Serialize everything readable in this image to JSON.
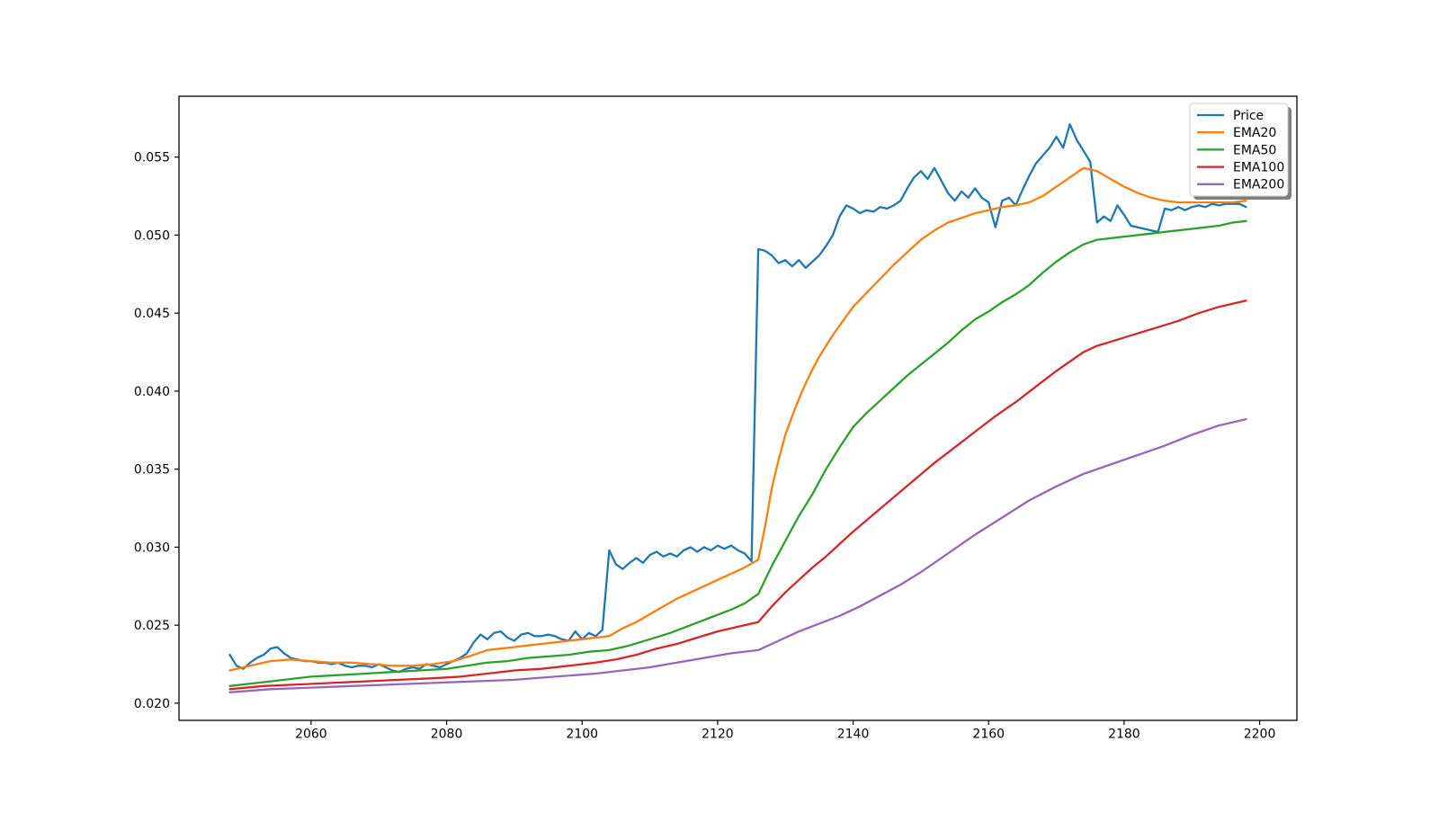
{
  "chart_data": {
    "type": "line",
    "title": "",
    "xlabel": "",
    "ylabel": "",
    "grid": false,
    "xlim": [
      2040.5,
      2205.5
    ],
    "ylim": [
      0.0189,
      0.0589
    ],
    "xticks": [
      2060,
      2080,
      2100,
      2120,
      2140,
      2160,
      2180,
      2200
    ],
    "xtick_labels": [
      "2060",
      "2080",
      "2100",
      "2120",
      "2140",
      "2160",
      "2180",
      "2200"
    ],
    "yticks": [
      0.02,
      0.025,
      0.03,
      0.035,
      0.04,
      0.045,
      0.05,
      0.055
    ],
    "ytick_labels": [
      "0.020",
      "0.025",
      "0.030",
      "0.035",
      "0.040",
      "0.045",
      "0.050",
      "0.055"
    ],
    "legend": {
      "position": "upper-right",
      "labels": [
        "Price",
        "EMA20",
        "EMA50",
        "EMA100",
        "EMA200"
      ]
    },
    "series": [
      {
        "name": "Price",
        "color": "#1f77b4",
        "x": [
          2048,
          2049,
          2050,
          2051,
          2052,
          2053,
          2054,
          2055,
          2056,
          2057,
          2058,
          2059,
          2060,
          2061,
          2062,
          2063,
          2064,
          2065,
          2066,
          2067,
          2068,
          2069,
          2070,
          2071,
          2072,
          2073,
          2074,
          2075,
          2076,
          2077,
          2078,
          2079,
          2080,
          2081,
          2082,
          2083,
          2084,
          2085,
          2086,
          2087,
          2088,
          2089,
          2090,
          2091,
          2092,
          2093,
          2094,
          2095,
          2096,
          2097,
          2098,
          2099,
          2100,
          2101,
          2102,
          2103,
          2104,
          2105,
          2106,
          2107,
          2108,
          2109,
          2110,
          2111,
          2112,
          2113,
          2114,
          2115,
          2116,
          2117,
          2118,
          2119,
          2120,
          2121,
          2122,
          2123,
          2124,
          2125,
          2126,
          2127,
          2128,
          2129,
          2130,
          2131,
          2132,
          2133,
          2134,
          2135,
          2136,
          2137,
          2138,
          2139,
          2140,
          2141,
          2142,
          2143,
          2144,
          2145,
          2146,
          2147,
          2148,
          2149,
          2150,
          2151,
          2152,
          2153,
          2154,
          2155,
          2156,
          2157,
          2158,
          2159,
          2160,
          2161,
          2162,
          2163,
          2164,
          2165,
          2166,
          2167,
          2168,
          2169,
          2170,
          2171,
          2172,
          2173,
          2174,
          2175,
          2176,
          2177,
          2178,
          2179,
          2180,
          2181,
          2182,
          2183,
          2184,
          2185,
          2186,
          2187,
          2188,
          2189,
          2190,
          2191,
          2192,
          2193,
          2194,
          2195,
          2196,
          2197,
          2198
        ],
        "y": [
          0.0231,
          0.0224,
          0.0222,
          0.0226,
          0.0229,
          0.0231,
          0.0235,
          0.0236,
          0.0232,
          0.0229,
          0.0228,
          0.0227,
          0.0227,
          0.0226,
          0.0226,
          0.0225,
          0.0226,
          0.0224,
          0.0223,
          0.0224,
          0.0224,
          0.0223,
          0.0225,
          0.0223,
          0.0221,
          0.022,
          0.0222,
          0.0223,
          0.0222,
          0.0225,
          0.0224,
          0.0223,
          0.0225,
          0.0227,
          0.0229,
          0.0232,
          0.0239,
          0.0244,
          0.0241,
          0.0245,
          0.0246,
          0.0242,
          0.024,
          0.0244,
          0.0245,
          0.0243,
          0.0243,
          0.0244,
          0.0243,
          0.0241,
          0.024,
          0.0246,
          0.0241,
          0.0245,
          0.0243,
          0.0247,
          0.0298,
          0.0289,
          0.0286,
          0.029,
          0.0293,
          0.029,
          0.0295,
          0.0297,
          0.0294,
          0.0296,
          0.0294,
          0.0298,
          0.03,
          0.0297,
          0.03,
          0.0298,
          0.0301,
          0.0299,
          0.0301,
          0.0298,
          0.0296,
          0.0291,
          0.0491,
          0.049,
          0.0487,
          0.0482,
          0.0484,
          0.048,
          0.0484,
          0.0479,
          0.0483,
          0.0487,
          0.0493,
          0.05,
          0.0512,
          0.0519,
          0.0517,
          0.0514,
          0.0516,
          0.0515,
          0.0518,
          0.0517,
          0.0519,
          0.0522,
          0.053,
          0.0537,
          0.0541,
          0.0536,
          0.0543,
          0.0535,
          0.0527,
          0.0522,
          0.0528,
          0.0524,
          0.053,
          0.0524,
          0.0521,
          0.0505,
          0.0522,
          0.0524,
          0.0519,
          0.0529,
          0.0538,
          0.0546,
          0.0551,
          0.0556,
          0.0563,
          0.0556,
          0.0571,
          0.0561,
          0.0554,
          0.0547,
          0.0508,
          0.0512,
          0.0509,
          0.0519,
          0.0513,
          0.0506,
          0.0505,
          0.0504,
          0.0503,
          0.0502,
          0.0517,
          0.0516,
          0.0518,
          0.0516,
          0.0518,
          0.0519,
          0.0518,
          0.052,
          0.0519,
          0.052,
          0.052,
          0.052,
          0.0518
        ]
      },
      {
        "name": "EMA20",
        "color": "#ff7f0e",
        "x": [
          2048,
          2051,
          2054,
          2057,
          2060,
          2063,
          2066,
          2069,
          2072,
          2075,
          2078,
          2081,
          2084,
          2086,
          2088,
          2090,
          2092,
          2094,
          2096,
          2098,
          2100,
          2102,
          2104,
          2106,
          2108,
          2110,
          2112,
          2114,
          2116,
          2118,
          2120,
          2122,
          2124,
          2126,
          2127,
          2128,
          2129,
          2130,
          2131,
          2132,
          2133,
          2134,
          2135,
          2136,
          2137,
          2138,
          2139,
          2140,
          2142,
          2144,
          2146,
          2148,
          2150,
          2152,
          2154,
          2156,
          2158,
          2160,
          2162,
          2164,
          2166,
          2168,
          2170,
          2172,
          2174,
          2176,
          2178,
          2180,
          2182,
          2184,
          2186,
          2188,
          2190,
          2192,
          2194,
          2196,
          2198
        ],
        "y": [
          0.0221,
          0.0224,
          0.0227,
          0.0228,
          0.0227,
          0.0226,
          0.0226,
          0.0225,
          0.0224,
          0.0224,
          0.0225,
          0.0227,
          0.0231,
          0.0234,
          0.0235,
          0.0236,
          0.0237,
          0.0238,
          0.0239,
          0.024,
          0.0241,
          0.0242,
          0.0243,
          0.0248,
          0.0252,
          0.0257,
          0.0262,
          0.0267,
          0.0271,
          0.0275,
          0.0279,
          0.0283,
          0.0287,
          0.0292,
          0.0313,
          0.0338,
          0.0356,
          0.0372,
          0.0384,
          0.0395,
          0.0405,
          0.0414,
          0.0422,
          0.0429,
          0.0436,
          0.0442,
          0.0448,
          0.0454,
          0.0463,
          0.0472,
          0.0481,
          0.0489,
          0.0497,
          0.0503,
          0.0508,
          0.0511,
          0.0514,
          0.0516,
          0.0518,
          0.0519,
          0.0521,
          0.0525,
          0.0531,
          0.0537,
          0.0543,
          0.0541,
          0.0536,
          0.0531,
          0.0527,
          0.0524,
          0.0522,
          0.0521,
          0.0521,
          0.0521,
          0.0521,
          0.0521,
          0.0522
        ]
      },
      {
        "name": "EMA50",
        "color": "#2ca02c",
        "x": [
          2048,
          2052,
          2056,
          2060,
          2064,
          2068,
          2072,
          2076,
          2080,
          2083,
          2086,
          2089,
          2092,
          2095,
          2098,
          2101,
          2104,
          2107,
          2110,
          2113,
          2116,
          2119,
          2122,
          2124,
          2126,
          2128,
          2130,
          2132,
          2134,
          2136,
          2138,
          2140,
          2142,
          2144,
          2146,
          2148,
          2150,
          2152,
          2154,
          2156,
          2158,
          2160,
          2162,
          2164,
          2166,
          2168,
          2170,
          2172,
          2174,
          2176,
          2178,
          2180,
          2182,
          2184,
          2186,
          2188,
          2190,
          2192,
          2194,
          2196,
          2198
        ],
        "y": [
          0.0211,
          0.0213,
          0.0215,
          0.0217,
          0.0218,
          0.0219,
          0.022,
          0.0221,
          0.0222,
          0.0224,
          0.0226,
          0.0227,
          0.0229,
          0.023,
          0.0231,
          0.0233,
          0.0234,
          0.0237,
          0.0241,
          0.0245,
          0.025,
          0.0255,
          0.026,
          0.0264,
          0.027,
          0.0288,
          0.0304,
          0.032,
          0.0334,
          0.035,
          0.0364,
          0.0377,
          0.0386,
          0.0394,
          0.0402,
          0.041,
          0.0417,
          0.0424,
          0.0431,
          0.0439,
          0.0446,
          0.0451,
          0.0457,
          0.0462,
          0.0468,
          0.0476,
          0.0483,
          0.0489,
          0.0494,
          0.0497,
          0.0498,
          0.0499,
          0.05,
          0.0501,
          0.0502,
          0.0503,
          0.0504,
          0.0505,
          0.0506,
          0.0508,
          0.0509
        ]
      },
      {
        "name": "EMA100",
        "color": "#d62728",
        "x": [
          2048,
          2053,
          2058,
          2063,
          2068,
          2073,
          2078,
          2082,
          2086,
          2090,
          2094,
          2098,
          2102,
          2105,
          2108,
          2111,
          2114,
          2117,
          2120,
          2123,
          2126,
          2128,
          2130,
          2132,
          2134,
          2136,
          2138,
          2140,
          2143,
          2146,
          2149,
          2152,
          2155,
          2158,
          2161,
          2164,
          2167,
          2170,
          2172,
          2174,
          2176,
          2179,
          2182,
          2185,
          2188,
          2191,
          2194,
          2198
        ],
        "y": [
          0.0209,
          0.0211,
          0.0212,
          0.0213,
          0.0214,
          0.0215,
          0.0216,
          0.0217,
          0.0219,
          0.0221,
          0.0222,
          0.0224,
          0.0226,
          0.0228,
          0.0231,
          0.0235,
          0.0238,
          0.0242,
          0.0246,
          0.0249,
          0.0252,
          0.0262,
          0.0271,
          0.0279,
          0.0287,
          0.0294,
          0.0302,
          0.031,
          0.0321,
          0.0332,
          0.0343,
          0.0354,
          0.0364,
          0.0374,
          0.0384,
          0.0393,
          0.0403,
          0.0413,
          0.0419,
          0.0425,
          0.0429,
          0.0433,
          0.0437,
          0.0441,
          0.0445,
          0.045,
          0.0454,
          0.0458
        ]
      },
      {
        "name": "EMA200",
        "color": "#9467bd",
        "x": [
          2048,
          2054,
          2060,
          2066,
          2072,
          2078,
          2084,
          2090,
          2096,
          2102,
          2106,
          2110,
          2114,
          2118,
          2122,
          2126,
          2129,
          2132,
          2135,
          2138,
          2141,
          2144,
          2147,
          2150,
          2154,
          2158,
          2162,
          2166,
          2170,
          2174,
          2178,
          2182,
          2186,
          2190,
          2194,
          2198
        ],
        "y": [
          0.0207,
          0.0209,
          0.021,
          0.0211,
          0.0212,
          0.0213,
          0.0214,
          0.0215,
          0.0217,
          0.0219,
          0.0221,
          0.0223,
          0.0226,
          0.0229,
          0.0232,
          0.0234,
          0.024,
          0.0246,
          0.0251,
          0.0256,
          0.0262,
          0.0269,
          0.0276,
          0.0284,
          0.0296,
          0.0308,
          0.0319,
          0.033,
          0.0339,
          0.0347,
          0.0353,
          0.0359,
          0.0365,
          0.0372,
          0.0378,
          0.0382
        ]
      }
    ]
  }
}
